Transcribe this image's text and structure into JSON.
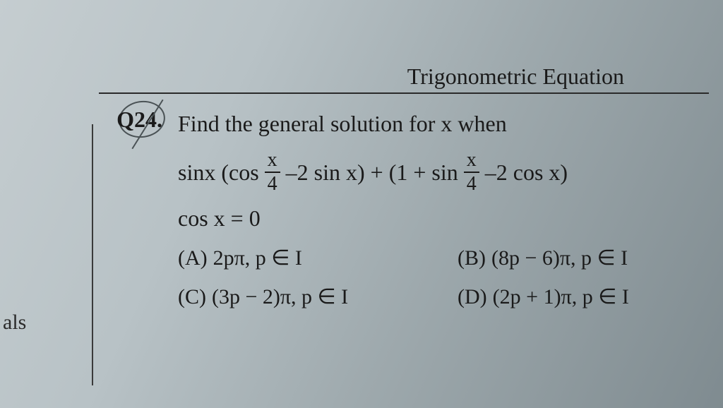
{
  "section_title": "Trigonometric Equation",
  "margin_text": "als",
  "question": {
    "number": "Q24.",
    "stem": "Find the general solution for x when",
    "eq": {
      "pre1": "sinx (cos",
      "frac1_num": "x",
      "frac1_den": "4",
      "mid1": "–2 sin x) + (1 + sin",
      "frac2_num": "x",
      "frac2_den": "4",
      "mid2": "–2 cos x)",
      "line2": "cos x = 0"
    },
    "options": {
      "A": {
        "letter": "(A)",
        "text": "2pπ, p ∈ I"
      },
      "B": {
        "letter": "(B)",
        "text": "(8p − 6)π, p ∈ I"
      },
      "C": {
        "letter": "(C)",
        "text": "(3p − 2)π, p ∈ I"
      },
      "D": {
        "letter": "(D)",
        "text": "(2p + 1)π, p ∈ I"
      }
    }
  },
  "colors": {
    "text": "#1a1a1a",
    "rule": "#2a2a2a",
    "pencil": "#4a5255"
  }
}
